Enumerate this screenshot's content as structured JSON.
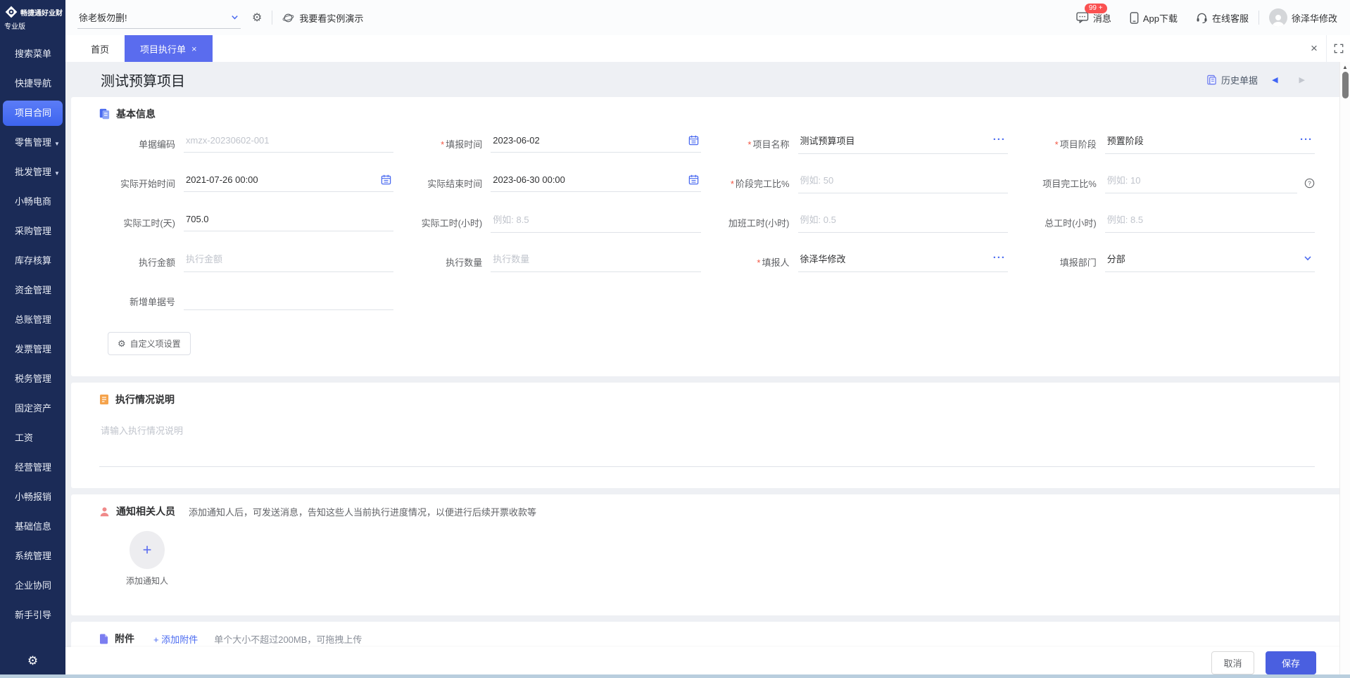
{
  "brand": {
    "name": "畅捷通好业财",
    "edition": "专业版"
  },
  "topbar": {
    "org": "徐老板勿删!",
    "demo": "我要看实例演示",
    "messages": "消息",
    "messages_badge": "99 +",
    "app_download": "App下载",
    "online_service": "在线客服",
    "user": "徐泽华修改"
  },
  "tabs": [
    {
      "label": "首页",
      "active": false,
      "closable": false
    },
    {
      "label": "项目执行单",
      "active": true,
      "closable": true
    }
  ],
  "page": {
    "title": "测试预算项目",
    "history": "历史单据"
  },
  "sidebar": {
    "items": [
      {
        "label": "搜索菜单"
      },
      {
        "label": "快捷导航"
      },
      {
        "label": "项目合同",
        "active": true
      },
      {
        "label": "零售管理",
        "arrow": true
      },
      {
        "label": "批发管理",
        "arrow": true
      },
      {
        "label": "小畅电商"
      },
      {
        "label": "采购管理"
      },
      {
        "label": "库存核算"
      },
      {
        "label": "资金管理"
      },
      {
        "label": "总账管理"
      },
      {
        "label": "发票管理"
      },
      {
        "label": "税务管理"
      },
      {
        "label": "固定资产"
      },
      {
        "label": "工资"
      },
      {
        "label": "经营管理"
      },
      {
        "label": "小畅报销"
      },
      {
        "label": "基础信息"
      },
      {
        "label": "系统管理"
      },
      {
        "label": "企业协同"
      },
      {
        "label": "新手引导"
      }
    ]
  },
  "basic_info": {
    "title": "基本信息",
    "custom_button": "自定义项设置",
    "fields": [
      {
        "label": "单据编码",
        "value": "xmzx-20230602-001",
        "muted": true
      },
      {
        "label": "填报时间",
        "value": "2023-06-02",
        "required": true,
        "icon": "calendar"
      },
      {
        "label": "项目名称",
        "value": "测试预算项目",
        "required": true,
        "icon": "ellipsis"
      },
      {
        "label": "项目阶段",
        "value": "预置阶段",
        "required": true,
        "icon": "ellipsis"
      },
      {
        "label": "实际开始时间",
        "value": "2021-07-26 00:00",
        "icon": "calendar"
      },
      {
        "label": "实际结束时间",
        "value": "2023-06-30 00:00",
        "icon": "calendar"
      },
      {
        "label": "阶段完工比%",
        "placeholder": "例如: 50",
        "required": true
      },
      {
        "label": "项目完工比%",
        "placeholder": "例如: 10",
        "icon": "help"
      },
      {
        "label": "实际工时(天)",
        "value": "705.0"
      },
      {
        "label": "实际工时(小时)",
        "placeholder": "例如: 8.5"
      },
      {
        "label": "加班工时(小时)",
        "placeholder": "例如: 0.5"
      },
      {
        "label": "总工时(小时)",
        "placeholder": "例如: 8.5"
      },
      {
        "label": "执行金额",
        "placeholder": "执行金额"
      },
      {
        "label": "执行数量",
        "placeholder": "执行数量"
      },
      {
        "label": "填报人",
        "value": "徐泽华修改",
        "required": true,
        "icon": "ellipsis"
      },
      {
        "label": "填报部门",
        "value": "分部",
        "icon": "chevron"
      },
      {
        "label": "新增单据号",
        "value": ""
      }
    ]
  },
  "exec_section": {
    "title": "执行情况说明",
    "placeholder": "请输入执行情况说明"
  },
  "notify_section": {
    "title": "通知相关人员",
    "hint": "添加通知人后，可发送消息，告知这些人当前执行进度情况，以便进行后续开票收款等",
    "add_label": "添加通知人",
    "plus": "+"
  },
  "attach_section": {
    "title": "附件",
    "add_link": "+ 添加附件",
    "hint": "单个大小不超过200MB，可拖拽上传"
  },
  "footer": {
    "cancel": "取消",
    "save": "保存"
  },
  "colors": {
    "accent": "#4a6af0",
    "save_button": "#4a5fe0",
    "sidebar_bg": "#1b2b57",
    "tab_active": "#5a6cee",
    "badge": "#fa5151"
  }
}
